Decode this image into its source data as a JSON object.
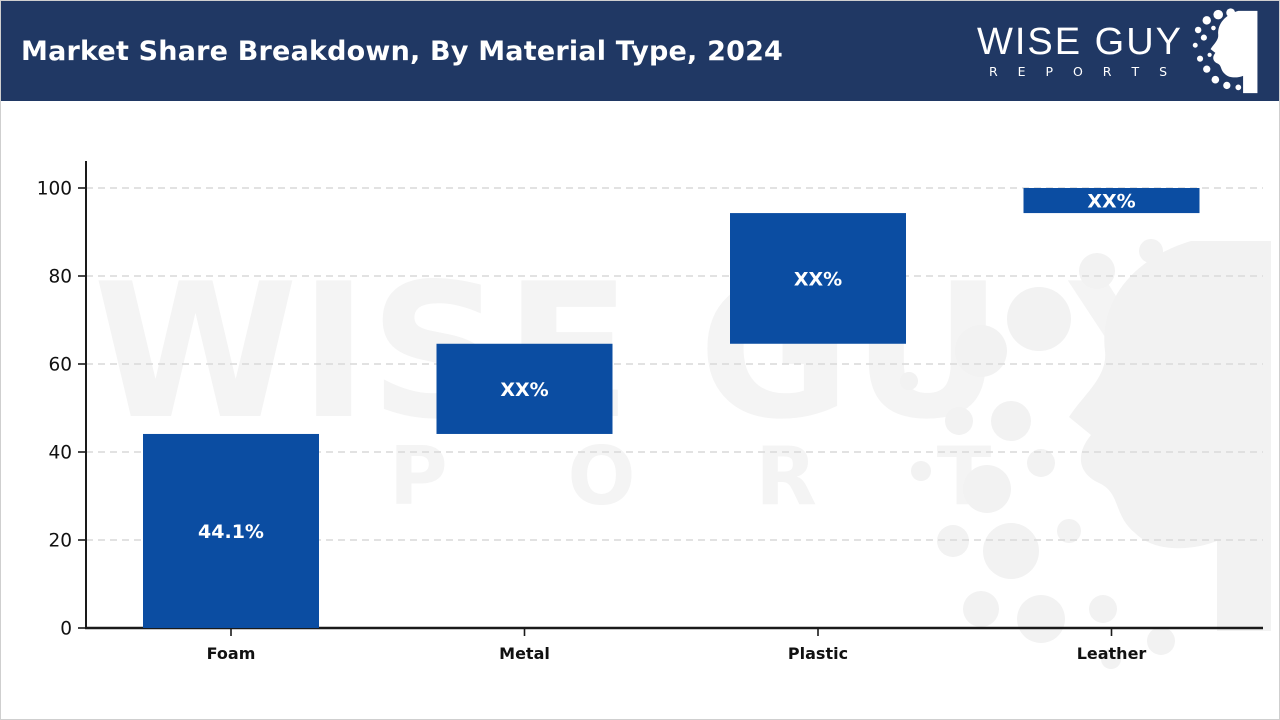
{
  "header": {
    "title": "Market Share Breakdown, By Material Type, 2024"
  },
  "logo": {
    "name": "WISE GUY",
    "sub": "R E P O R T S"
  },
  "watermark": {
    "line1": "WISE GU Y",
    "line2": "P O R T S"
  },
  "chart_data": {
    "type": "bar",
    "subtype": "waterfall",
    "title": "Market Share Breakdown, By Material Type, 2024",
    "categories": [
      "Foam",
      "Metal",
      "Plastic",
      "Leather"
    ],
    "segments": [
      {
        "category": "Foam",
        "start": 0,
        "end": 44.1,
        "label": "44.1%"
      },
      {
        "category": "Metal",
        "start": 44.1,
        "end": 64.6,
        "label": "XX%"
      },
      {
        "category": "Plastic",
        "start": 64.6,
        "end": 94.3,
        "label": "XX%"
      },
      {
        "category": "Leather",
        "start": 94.3,
        "end": 100,
        "label": "XX%"
      }
    ],
    "ylim": [
      0,
      100
    ],
    "yticks": [
      0,
      20,
      40,
      60,
      80,
      100
    ],
    "xlabel": "",
    "ylabel": "",
    "grid": "horizontal-dashed",
    "legend": "none",
    "bar_color": "#0b4da2",
    "bar_label_color": "#ffffff"
  },
  "colors": {
    "header_bg": "#203864",
    "bar": "#0b4da2",
    "grid": "#d9d9d9",
    "axis": "#1a1a1a",
    "watermark": "#f4f4f4"
  }
}
